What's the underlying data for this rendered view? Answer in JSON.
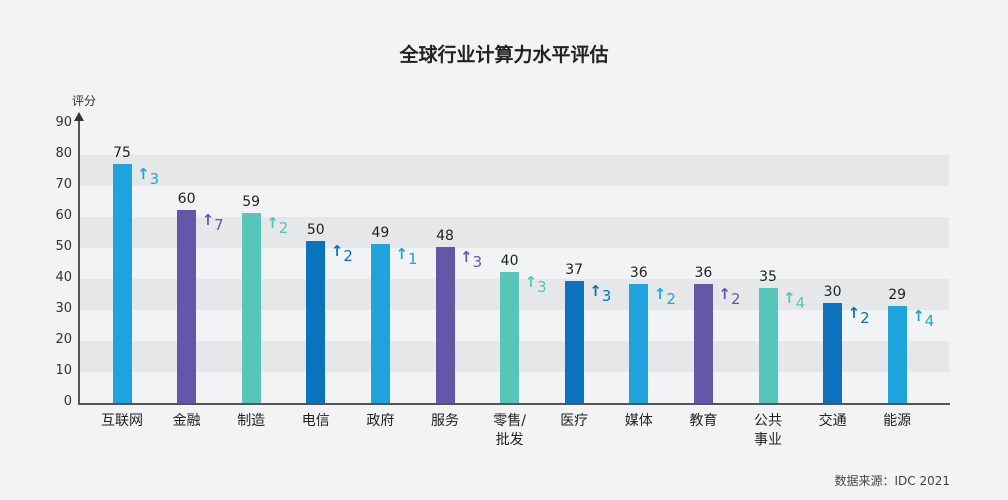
{
  "title": "全球行业计算力水平评估",
  "source": "数据来源：IDC 2021",
  "chart_data": {
    "type": "bar",
    "title": "全球行业计算力水平评估",
    "xlabel": "",
    "ylabel": "评分",
    "ylim": [
      0,
      90
    ],
    "yticks": [
      0,
      10,
      20,
      30,
      40,
      50,
      60,
      70,
      80,
      90
    ],
    "grid": "alternating horizontal bands (70-80, 50-60, 30-40, 10-20 shaded)",
    "legend": null,
    "categories": [
      "互联网",
      "金融",
      "制造",
      "电信",
      "政府",
      "服务",
      "零售/批发",
      "医疗",
      "媒体",
      "教育",
      "公共事业",
      "交通",
      "能源"
    ],
    "values": [
      75,
      60,
      59,
      50,
      49,
      48,
      40,
      37,
      36,
      36,
      35,
      30,
      29
    ],
    "annotations": {
      "rank_change_up": [
        3,
        7,
        2,
        2,
        1,
        3,
        3,
        3,
        2,
        2,
        4,
        2,
        4
      ]
    },
    "colors": [
      "#1fa3dc",
      "#6557a8",
      "#57c5b8",
      "#0b72bd",
      "#1fa3dc",
      "#6557a8",
      "#57c5b8",
      "#0b72bd",
      "#1fa3dc",
      "#6557a8",
      "#57c5b8",
      "#0b72bd",
      "#1fa3dc"
    ],
    "source": "数据来源：IDC 2021"
  },
  "labels_display": [
    "互联网",
    "金融",
    "制造",
    "电信",
    "政府",
    "服务",
    "零售/\n批发",
    "医疗",
    "媒体",
    "教育",
    "公共\n事业",
    "交通",
    "能源"
  ],
  "arrow_glyph": "↑"
}
